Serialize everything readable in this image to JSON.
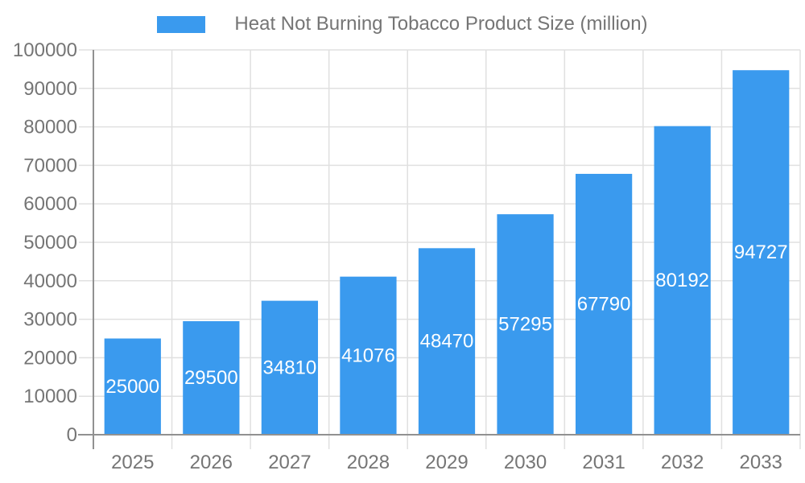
{
  "legend": {
    "label": "Heat Not Burning Tobacco Product Size (million)"
  },
  "chart_data": {
    "type": "bar",
    "title": "Heat Not Burning Tobacco Product Size (million)",
    "categories": [
      "2025",
      "2026",
      "2027",
      "2028",
      "2029",
      "2030",
      "2031",
      "2032",
      "2033"
    ],
    "values": [
      25000,
      29500,
      34810,
      41076,
      48470,
      57295,
      67790,
      80192,
      94727
    ],
    "series": [
      {
        "name": "Heat Not Burning Tobacco Product Size (million)",
        "values": [
          25000,
          29500,
          34810,
          41076,
          48470,
          57295,
          67790,
          80192,
          94727
        ]
      }
    ],
    "xlabel": "",
    "ylabel": "",
    "ylim": [
      0,
      100000
    ],
    "ytick_step": 10000,
    "yticks": [
      0,
      10000,
      20000,
      30000,
      40000,
      50000,
      60000,
      70000,
      80000,
      90000,
      100000
    ],
    "grid": true,
    "legend_position": "top",
    "value_labels": "inside-center",
    "colors": {
      "bar": "#3A9AEE",
      "grid": "#E0E0E0",
      "axis": "#919191",
      "axis_text": "#757575",
      "value_label": "#FFFFFF"
    }
  }
}
